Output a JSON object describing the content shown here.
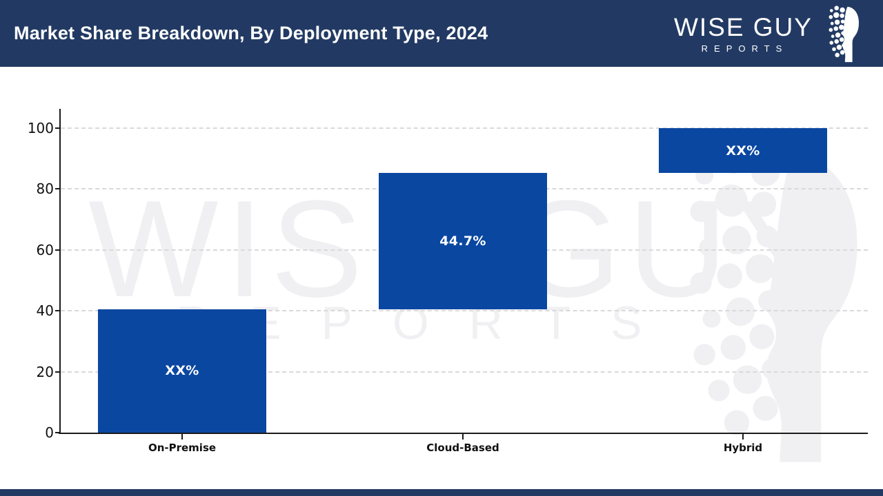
{
  "header": {
    "title": "Market Share Breakdown, By Deployment Type, 2024",
    "logo": {
      "line1": "WISE GUY",
      "line2": "REPORTS"
    }
  },
  "watermark": {
    "line1": "WISE GUY",
    "line2": "REPORTS"
  },
  "chart_data": {
    "type": "bar",
    "subtype": "waterfall",
    "title": "Market Share Breakdown, By Deployment Type, 2024",
    "categories": [
      "On-Premise",
      "Cloud-Based",
      "Hybrid"
    ],
    "segments": [
      {
        "category": "On-Premise",
        "start": 0,
        "end": 40.5,
        "height": 40.5,
        "label": "XX%"
      },
      {
        "category": "Cloud-Based",
        "start": 40.5,
        "end": 85.2,
        "height": 44.7,
        "label": "44.7%"
      },
      {
        "category": "Hybrid",
        "start": 85.2,
        "end": 100,
        "height": 14.8,
        "label": "XX%"
      }
    ],
    "yticks": [
      0,
      20,
      40,
      60,
      80,
      100
    ],
    "ylim": [
      0,
      100
    ],
    "xlabel": "",
    "ylabel": "",
    "grid": "horizontal-dashed",
    "legend": "none"
  },
  "colors": {
    "header_bg": "#223a63",
    "footer_bg": "#223a63",
    "bar": "#0a47a1",
    "bar_label": "#ffffff",
    "grid": "#d9d9d9",
    "axis": "#1a1a1a",
    "watermark": "#f0f0f3",
    "background": "#ffffff"
  }
}
